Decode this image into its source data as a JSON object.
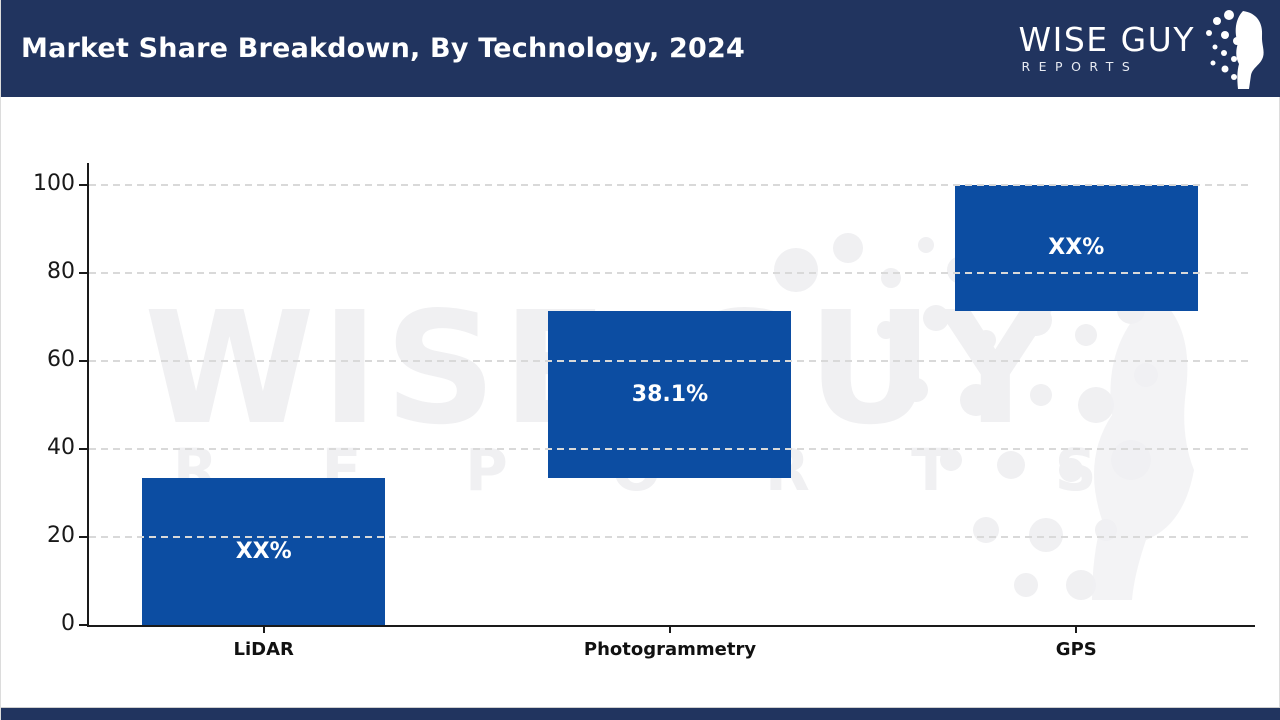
{
  "header": {
    "title": "Market Share Breakdown, By Technology, 2024",
    "brand": {
      "name": "WISE GUY",
      "subtitle": "REPORTS"
    }
  },
  "watermark": {
    "name": "WISE GUY",
    "subtitle": "REPORTS"
  },
  "chart_data": {
    "type": "bar",
    "variant": "floating-waterfall",
    "title": "Market Share Breakdown, By Technology, 2024",
    "categories": [
      "LiDAR",
      "Photogrammetry",
      "GPS"
    ],
    "bars": [
      {
        "category": "LiDAR",
        "start": 0,
        "end": 33.3,
        "value_label": "XX%"
      },
      {
        "category": "Photogrammetry",
        "start": 33.3,
        "end": 71.4,
        "value_label": "38.1%"
      },
      {
        "category": "GPS",
        "start": 71.4,
        "end": 100,
        "value_label": "XX%"
      }
    ],
    "xlabel": "",
    "ylabel": "",
    "yticks": [
      0,
      20,
      40,
      60,
      80,
      100
    ],
    "ylim": [
      0,
      105
    ],
    "grid": true,
    "grid_style": "dashed",
    "legend": false,
    "bar_color": "#0c4da2",
    "value_label_color": "#ffffff"
  },
  "colors": {
    "header_bg": "#21345f",
    "footer_bg": "#21345f",
    "bar": "#0c4da2",
    "axis": "#1a1a1a",
    "gridline": "#d9d9d9",
    "watermark": "#f0f0f2",
    "page_bg": "#ffffff",
    "title_text": "#ffffff"
  }
}
